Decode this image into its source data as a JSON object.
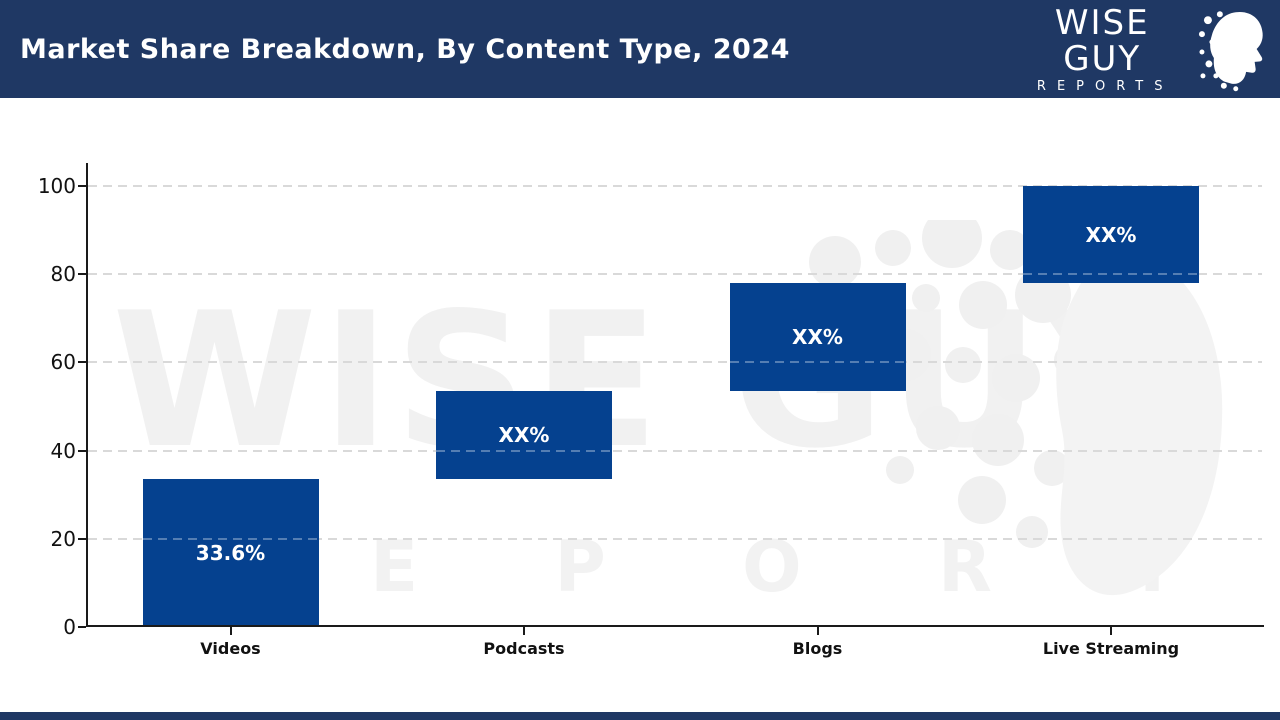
{
  "header": {
    "title": "Market Share Breakdown, By Content Type, 2024",
    "logo": {
      "line1": "WISE GUY",
      "line2": "REPORTS"
    },
    "bg_color": "#1f3864"
  },
  "watermark": {
    "line1": "WISE GUY",
    "line2": "R E P O R T S"
  },
  "footer": {
    "bg_color": "#1f3864"
  },
  "chart_data": {
    "type": "bar",
    "subtype": "waterfall",
    "title": "Market Share Breakdown, By Content Type, 2024",
    "xlabel": "",
    "ylabel": "",
    "categories": [
      "Videos",
      "Podcasts",
      "Blogs",
      "Live Streaming"
    ],
    "segments": [
      {
        "category": "Videos",
        "start": 0,
        "end": 33.6,
        "value": 33.6,
        "label": "33.6%"
      },
      {
        "category": "Podcasts",
        "start": 33.6,
        "end": 53.6,
        "value": 20.0,
        "label": "XX%"
      },
      {
        "category": "Blogs",
        "start": 53.6,
        "end": 78.0,
        "value": 24.4,
        "label": "XX%"
      },
      {
        "category": "Live Streaming",
        "start": 78.0,
        "end": 100.0,
        "value": 22.0,
        "label": "XX%"
      }
    ],
    "ylim": [
      0,
      100
    ],
    "yticks": [
      0,
      20,
      40,
      60,
      80,
      100
    ],
    "grid": "horizontal-dashed",
    "legend": "none",
    "bar_color": "#05418f",
    "bar_label_color": "#ffffff",
    "grid_color": "#d9d9d9",
    "axis_color": "#1a1a1a"
  }
}
